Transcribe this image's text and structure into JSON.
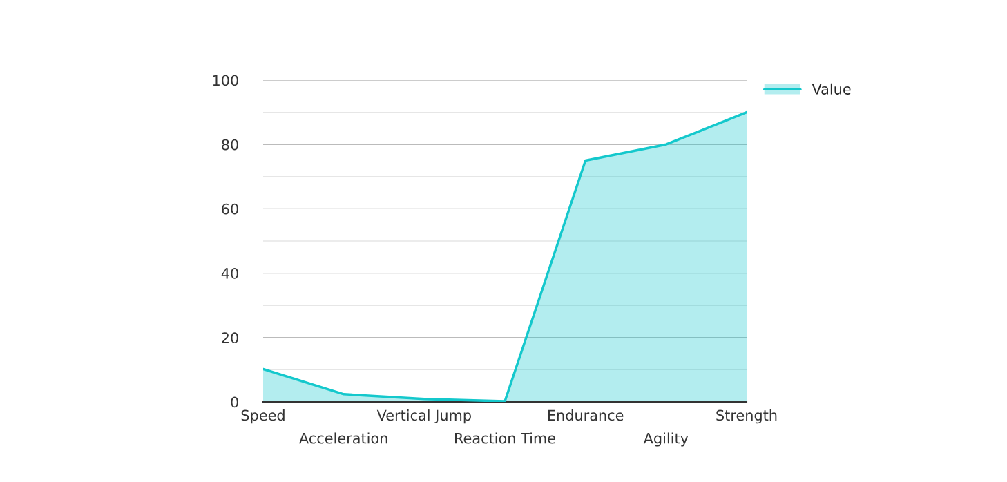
{
  "chart_data": {
    "type": "area",
    "categories": [
      "Speed",
      "Acceleration",
      "Vertical Jump",
      "Reaction Time",
      "Endurance",
      "Agility",
      "Strength"
    ],
    "series": [
      {
        "name": "Value",
        "color": "#14c8cc",
        "values": [
          10.2,
          2.4,
          0.9,
          0.2,
          75,
          80,
          90
        ]
      }
    ],
    "ylim": [
      0,
      100
    ],
    "yticks": [
      0,
      {
        "value": 10,
        "label": null
      },
      20,
      {
        "value": 30,
        "label": null
      },
      40,
      {
        "value": 50,
        "label": null
      },
      60,
      {
        "value": 70,
        "label": null
      },
      80,
      {
        "value": 90,
        "label": null
      },
      100
    ],
    "grid": "y",
    "legend": "top right"
  }
}
